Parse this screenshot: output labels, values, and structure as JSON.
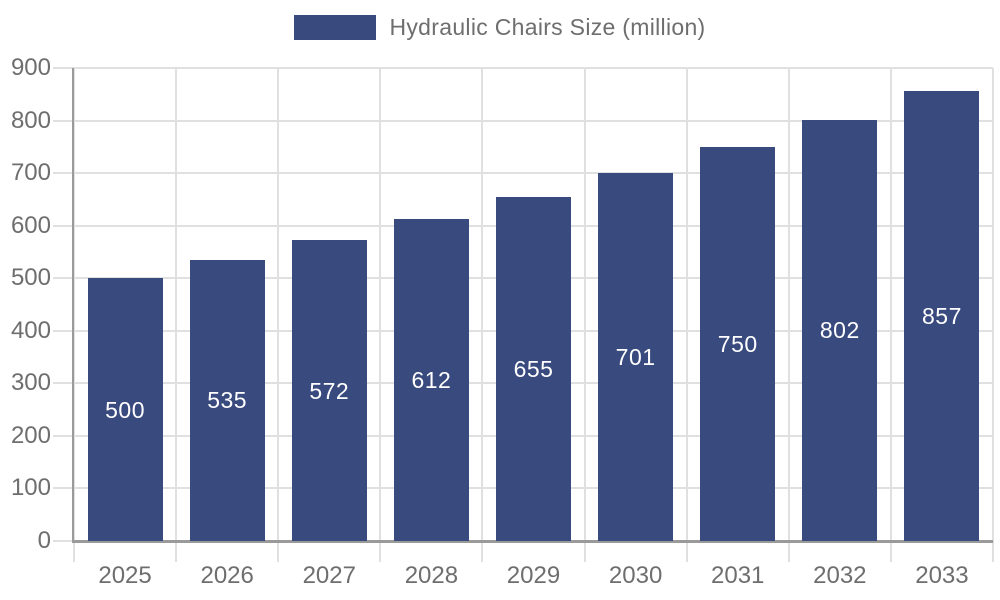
{
  "chart_data": {
    "type": "bar",
    "title": "",
    "categories": [
      "2025",
      "2026",
      "2027",
      "2028",
      "2029",
      "2030",
      "2031",
      "2032",
      "2033"
    ],
    "series": [
      {
        "name": "Hydraulic Chairs Size (million)",
        "values": [
          500,
          535,
          572,
          612,
          655,
          701,
          750,
          802,
          857
        ]
      }
    ],
    "xlabel": "",
    "ylabel": "",
    "ylim": [
      0,
      900
    ],
    "ytick_step": 100,
    "yticks": [
      0,
      100,
      200,
      300,
      400,
      500,
      600,
      700,
      800,
      900
    ],
    "grid": true,
    "legend_position": "top-center",
    "value_labels_position": "inside-middle",
    "colors": {
      "bar": "#394a7f",
      "grid": "#e0e0e0",
      "axis": "#9a9a9a",
      "tick_text": "#6e6e6e",
      "legend_text": "#6e6e6e",
      "value_label_text": "#ffffff",
      "background": "#ffffff"
    }
  }
}
